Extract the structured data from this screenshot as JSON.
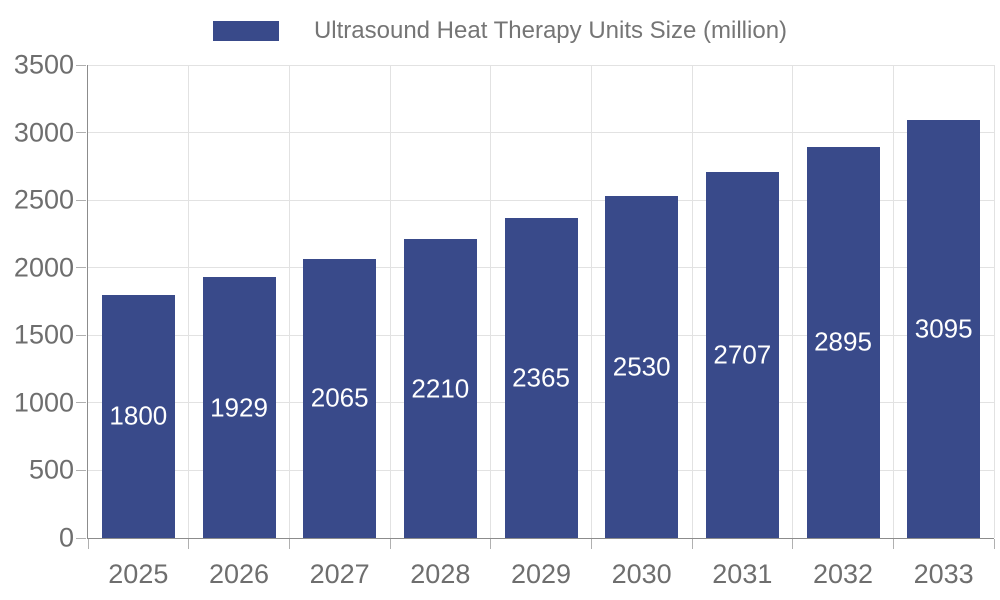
{
  "chart_data": {
    "type": "bar",
    "title": "Ultrasound Heat Therapy Units Size (million)",
    "categories": [
      "2025",
      "2026",
      "2027",
      "2028",
      "2029",
      "2030",
      "2031",
      "2032",
      "2033"
    ],
    "values": [
      1800,
      1929,
      2065,
      2210,
      2365,
      2530,
      2707,
      2895,
      3095
    ],
    "series": [
      {
        "name": "Ultrasound Heat Therapy Units Size (million)",
        "values": [
          1800,
          1929,
          2065,
          2210,
          2365,
          2530,
          2707,
          2895,
          3095
        ]
      }
    ],
    "xlabel": "",
    "ylabel": "",
    "ylim": [
      0,
      3500
    ],
    "ytick_interval": 500,
    "ytick_labels": [
      "0",
      "500",
      "1000",
      "1500",
      "2000",
      "2500",
      "3000",
      "3500"
    ],
    "grid": true,
    "bar_value_labels_visible": true,
    "legend_position": "top-center",
    "colors": {
      "bar": "#394A8A",
      "bar_label": "#ffffff",
      "axis_line": "#8c8c8c",
      "grid_line": "#e2e2e2",
      "tick_mark": "#b0b0b0",
      "tick_label": "#6e6e6e",
      "legend_text": "#757575",
      "background": "#ffffff"
    }
  }
}
